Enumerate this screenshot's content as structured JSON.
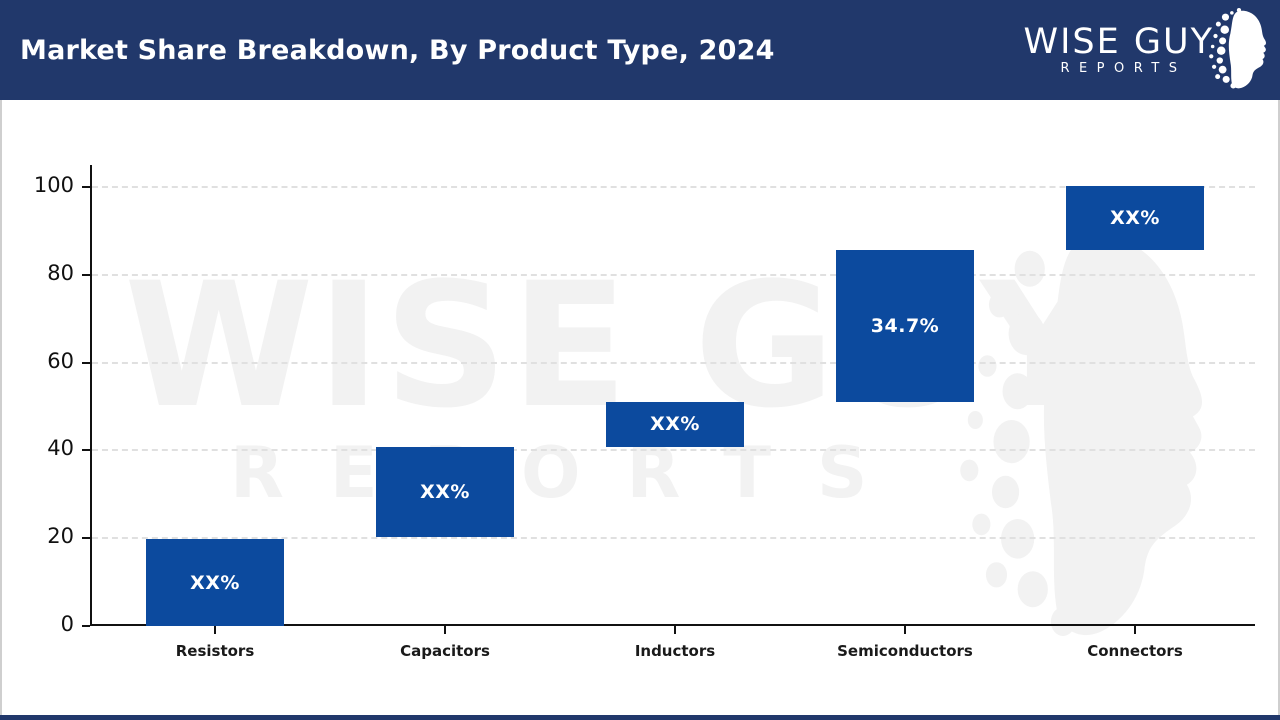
{
  "header": {
    "title": "Market Share Breakdown, By Product Type, 2024",
    "logo": {
      "line1": "WISE GUY",
      "line2": "REPORTS",
      "icon": "dotted-head-profile"
    }
  },
  "watermark": {
    "line1": "WISE GUY",
    "line2": "REPORTS",
    "icon": "dotted-head-profile"
  },
  "colors": {
    "header_bg": "#21386b",
    "footer_bg": "#21386b",
    "bar": "#0c4a9e",
    "bar_label": "#ffffff",
    "grid": "#e0e0e0",
    "axis": "#111111",
    "watermark": "#f2f2f2",
    "title_text": "#ffffff"
  },
  "chart_data": {
    "type": "bar",
    "subtype": "floating-waterfall",
    "title": "Market Share Breakdown, By Product Type, 2024",
    "xlabel": "",
    "ylabel": "",
    "categories": [
      "Resistors",
      "Capacitors",
      "Inductors",
      "Semiconductors",
      "Connectors"
    ],
    "bars": [
      {
        "category": "Resistors",
        "start": 0,
        "end": 19.8,
        "label": "XX%"
      },
      {
        "category": "Capacitors",
        "start": 20.2,
        "end": 40.8,
        "label": "XX%"
      },
      {
        "category": "Inductors",
        "start": 40.8,
        "end": 51.0,
        "label": "XX%"
      },
      {
        "category": "Semiconductors",
        "start": 51.0,
        "end": 85.7,
        "label": "34.7%"
      },
      {
        "category": "Connectors",
        "start": 85.7,
        "end": 100.3,
        "label": "XX%"
      }
    ],
    "yticks": [
      0,
      20,
      40,
      60,
      80,
      100
    ],
    "ylim": [
      0,
      105
    ],
    "grid": "horizontal-dashed",
    "legend": "none"
  }
}
